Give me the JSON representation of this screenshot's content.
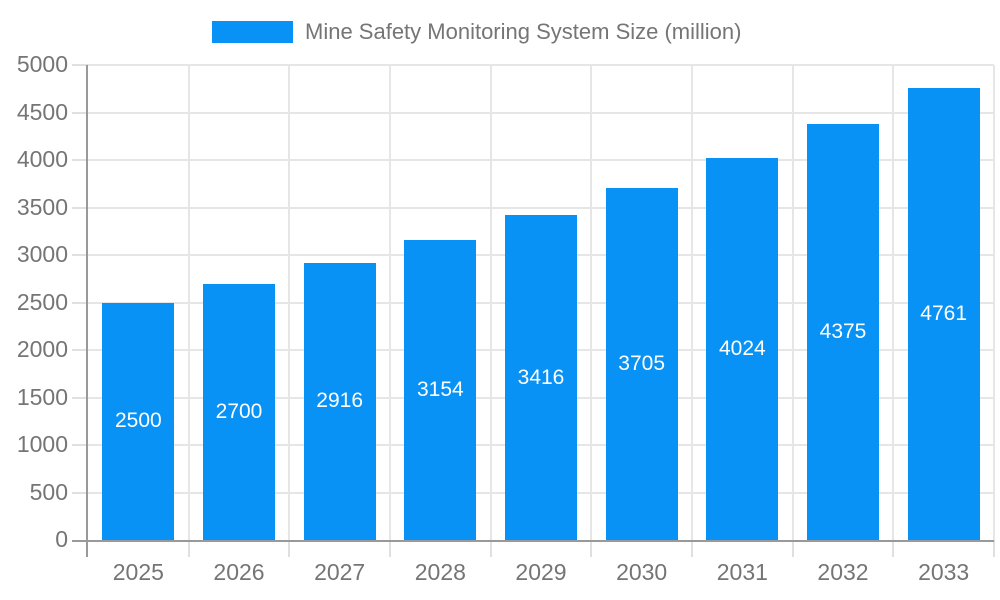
{
  "chart_data": {
    "type": "bar",
    "title": "Mine Safety Monitoring System Size (million)",
    "categories": [
      "2025",
      "2026",
      "2027",
      "2028",
      "2029",
      "2030",
      "2031",
      "2032",
      "2033"
    ],
    "values": [
      2500,
      2700,
      2916,
      3154,
      3416,
      3705,
      4024,
      4375,
      4761
    ],
    "xlabel": "",
    "ylabel": "",
    "ylim": [
      0,
      5000
    ],
    "ytick_step": 500,
    "grid": true,
    "legend_position": "top-center",
    "bar_color": "#0992f5",
    "value_label_color": "#ffffff",
    "axis_color": "#999999",
    "tick_label_color": "#757575",
    "gridline_color": "#e6e6e6"
  }
}
